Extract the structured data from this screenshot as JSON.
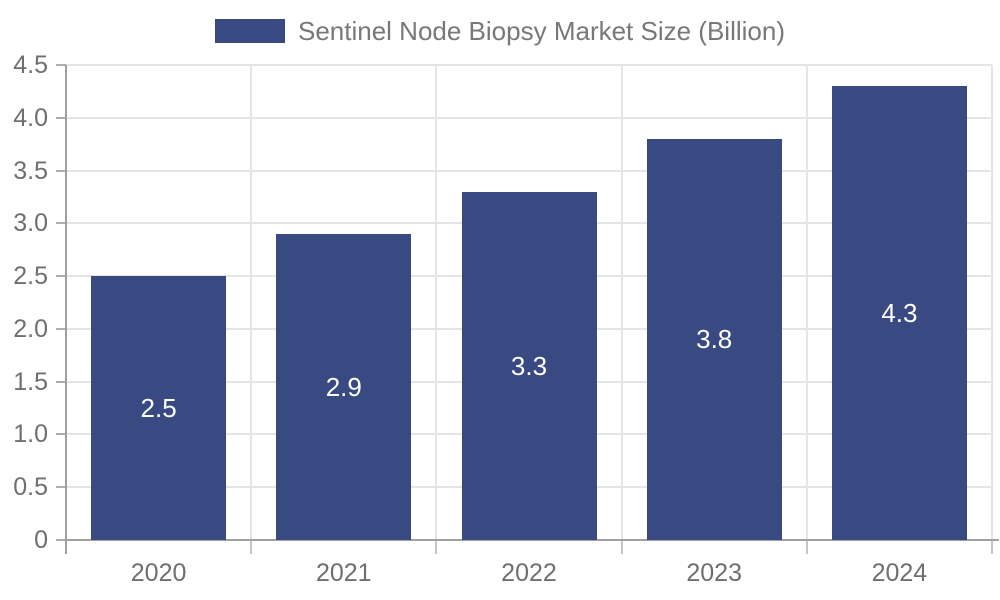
{
  "chart_data": {
    "type": "bar",
    "title": "Sentinel Node Biopsy Market Size (Billion)",
    "categories": [
      "2020",
      "2021",
      "2022",
      "2023",
      "2024"
    ],
    "values": [
      2.5,
      2.9,
      3.3,
      3.8,
      4.3
    ],
    "value_labels": [
      "2.5",
      "2.9",
      "3.3",
      "3.8",
      "4.3"
    ],
    "xlabel": "",
    "ylabel": "",
    "ylim": [
      0,
      4.5
    ],
    "ytick_labels": [
      "0",
      "0.5",
      "1.0",
      "1.5",
      "2.0",
      "2.5",
      "3.0",
      "3.5",
      "4.0",
      "4.5"
    ],
    "grid": true,
    "legend_position": "top-center",
    "value_label_position": "inside-center",
    "colors": {
      "bar": "#394A83",
      "value_label": "#FFFFFF",
      "grid_line": "#E5E5E5",
      "axis_line": "#A0A0A0",
      "x_tick": "#C6C6C6",
      "y_tick": "#ADADAD",
      "axis_text": "#6F6F6F",
      "legend_text": "#787878",
      "background": "#FFFFFF"
    }
  }
}
